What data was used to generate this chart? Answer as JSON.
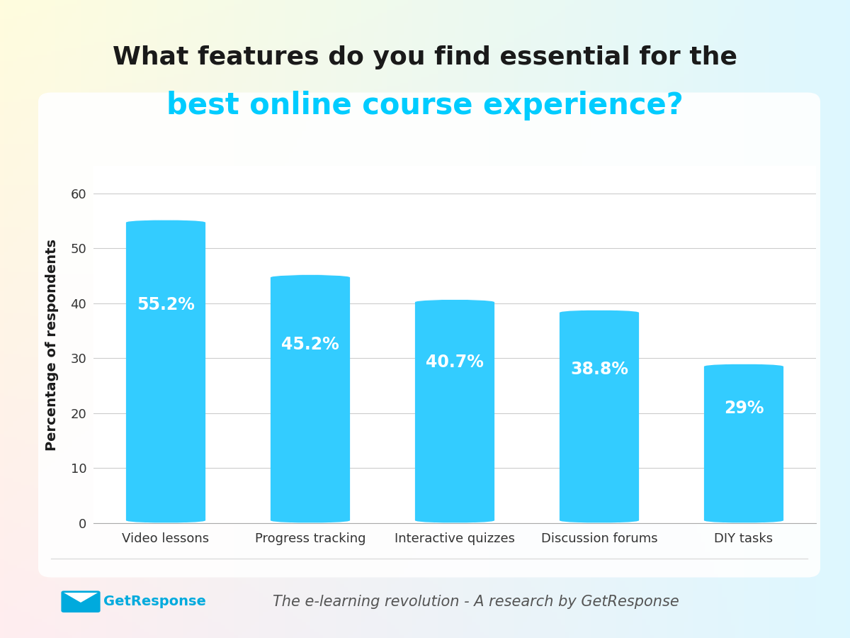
{
  "title_line1": "What features do you find essential for the",
  "title_line2": "best online course experience?",
  "title_line1_color": "#1a1a1a",
  "title_line2_color": "#00ccff",
  "categories": [
    "Video lessons",
    "Progress tracking",
    "Interactive quizzes",
    "Discussion forums",
    "DIY tasks"
  ],
  "values": [
    55.2,
    45.2,
    40.7,
    38.8,
    29.0
  ],
  "labels": [
    "55.2%",
    "45.2%",
    "40.7%",
    "38.8%",
    "29%"
  ],
  "bar_color": "#33ccff",
  "bar_label_color": "#ffffff",
  "ylabel": "Percentage of respondents",
  "ylim": [
    0,
    65
  ],
  "yticks": [
    0,
    10,
    20,
    30,
    40,
    50,
    60
  ],
  "footer_text": "The e-learning revolution - A research by GetResponse",
  "footer_color": "#555555",
  "brand_text": "GetResponse",
  "brand_color": "#00aadd",
  "title_fontsize": 26,
  "subtitle_fontsize": 30,
  "ylabel_fontsize": 14,
  "tick_fontsize": 13,
  "bar_label_fontsize": 17,
  "footer_fontsize": 15
}
